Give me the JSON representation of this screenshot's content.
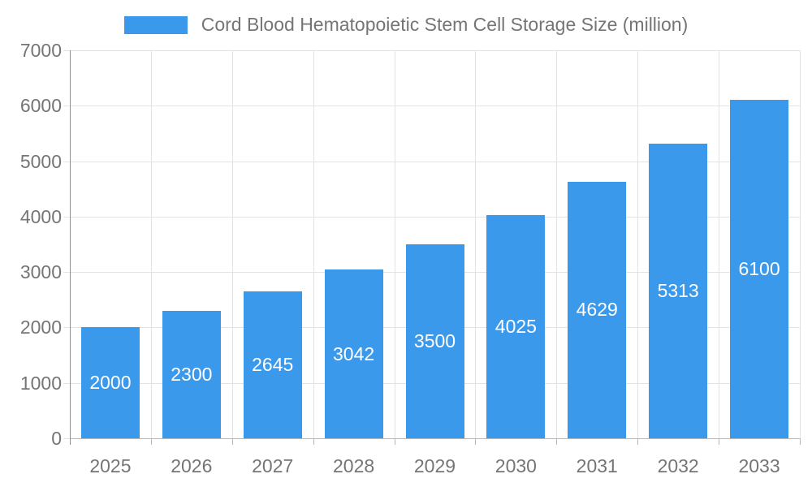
{
  "legend": {
    "label": "Cord Blood Hematopoietic Stem Cell Storage Size (million)"
  },
  "chart_data": {
    "type": "bar",
    "title": "Cord Blood Hematopoietic Stem Cell Storage Size (million)",
    "categories": [
      "2025",
      "2026",
      "2027",
      "2028",
      "2029",
      "2030",
      "2031",
      "2032",
      "2033"
    ],
    "values": [
      2000,
      2300,
      2645,
      3042,
      3500,
      4025,
      4629,
      5313,
      6100
    ],
    "xlabel": "",
    "ylabel": "",
    "ylim": [
      0,
      7000
    ],
    "yticks": [
      0,
      1000,
      2000,
      3000,
      4000,
      5000,
      6000,
      7000
    ],
    "grid": true,
    "legend_position": "top-center",
    "value_labels": "inside-center",
    "colors": {
      "bar_color": "#3b99ec",
      "text_color": "#757575",
      "grid_color": "#e3e3e3",
      "axis_color": "#919191",
      "value_label_color": "#ffffff"
    }
  }
}
